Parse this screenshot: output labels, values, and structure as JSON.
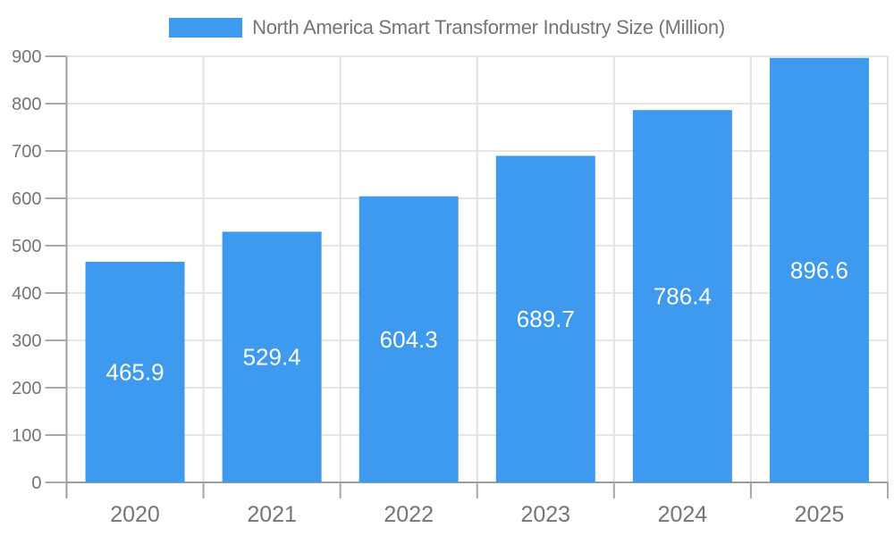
{
  "chart_data": {
    "type": "bar",
    "title": "North America Smart Transformer Industry Size (Million)",
    "categories": [
      "2020",
      "2021",
      "2022",
      "2023",
      "2024",
      "2025"
    ],
    "series": [
      {
        "name": "North America Smart Transformer Industry Size (Million)",
        "values": [
          465.9,
          529.4,
          604.3,
          689.7,
          786.4,
          896.6
        ]
      }
    ],
    "value_labels": [
      "465.9",
      "529.4",
      "604.3",
      "689.7",
      "786.4",
      "896.6"
    ],
    "xlabel": "",
    "ylabel": "",
    "ylim": [
      0,
      900
    ],
    "ytick_step": 100,
    "ytick_labels": [
      "0",
      "100",
      "200",
      "300",
      "400",
      "500",
      "600",
      "700",
      "800",
      "900"
    ],
    "grid": true,
    "legend_position": "top",
    "value_label_position": "inside-center",
    "colors": {
      "bar": "#3D9AEE",
      "grid": "#E2E2E2",
      "axis": "#9C9C9C",
      "tick": "#A8A8A8",
      "tick_label": "#757575",
      "value_label": "#FFFFFF",
      "legend_text": "#757575",
      "background": "#FFFFFF"
    }
  }
}
